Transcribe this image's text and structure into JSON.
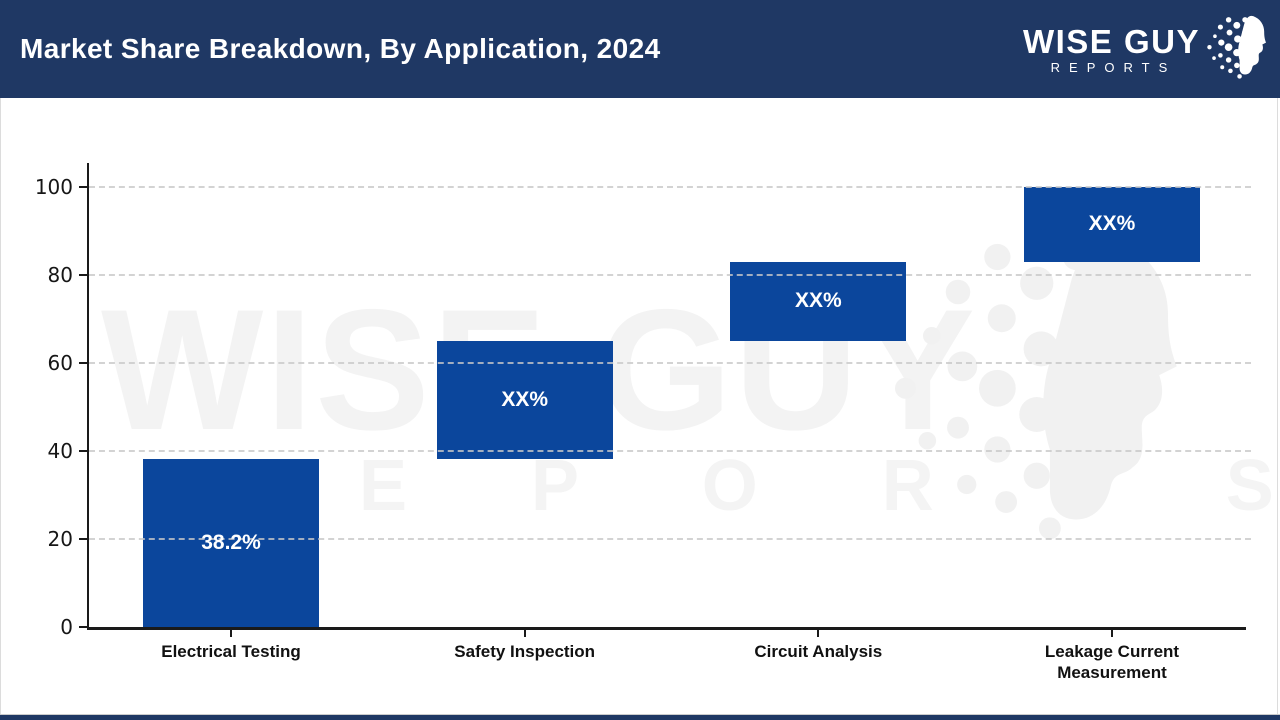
{
  "header": {
    "title": "Market Share Breakdown, By Application, 2024",
    "logo": {
      "line1": "WISE GUY",
      "line2": "REPORTS"
    },
    "bg_color": "#1f3864"
  },
  "watermark": {
    "line1": "WISE GUY",
    "line2": "R E P O R T S"
  },
  "footer": {
    "bg_color": "#1f3864"
  },
  "chart_data": {
    "type": "bar",
    "variant": "floating-waterfall",
    "title": "Market Share Breakdown, By Application, 2024",
    "categories": [
      "Electrical Testing",
      "Safety Inspection",
      "Circuit Analysis",
      "Leakage Current Measurement"
    ],
    "segments": [
      {
        "start": 0,
        "end": 38.2,
        "label": "38.2%"
      },
      {
        "start": 38.2,
        "end": 65,
        "label": "XX%"
      },
      {
        "start": 65,
        "end": 83,
        "label": "XX%"
      },
      {
        "start": 83,
        "end": 100,
        "label": "XX%"
      }
    ],
    "ylim": [
      0,
      100
    ],
    "yticks": [
      0,
      20,
      40,
      60,
      80,
      100
    ],
    "xlabel": "",
    "ylabel": "",
    "grid": "horizontal-dashed",
    "legend": "none",
    "bar_color": "#0b469c",
    "axis_color": "#1a1a1a",
    "grid_color": "#c9c9c9"
  }
}
